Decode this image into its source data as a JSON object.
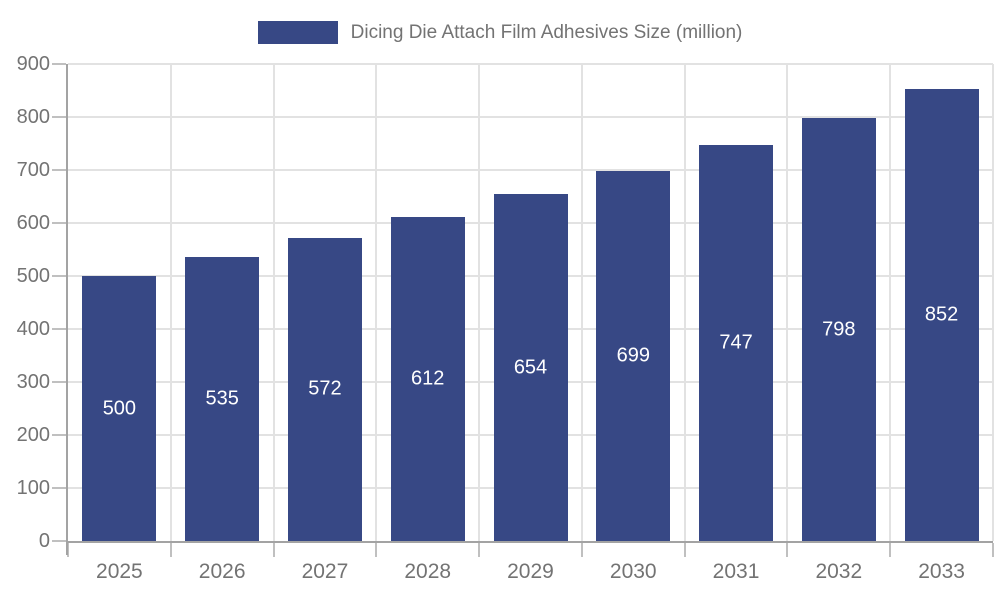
{
  "chart_data": {
    "type": "bar",
    "title": "Dicing Die Attach Film Adhesives Size (million)",
    "categories": [
      "2025",
      "2026",
      "2027",
      "2028",
      "2029",
      "2030",
      "2031",
      "2032",
      "2033"
    ],
    "values": [
      500,
      535,
      572,
      612,
      654,
      699,
      747,
      798,
      852
    ],
    "xlabel": "",
    "ylabel": "",
    "ylim": [
      0,
      900
    ],
    "yticks": [
      0,
      100,
      200,
      300,
      400,
      500,
      600,
      700,
      800,
      900
    ],
    "grid": true,
    "legend_position": "top",
    "value_labels": "inside-center"
  },
  "colors": {
    "bar": "#374885",
    "value_label": "#ffffff",
    "grid": "#e2e2e2",
    "axis": "#a3a3a3",
    "tick": "#c0c0c0",
    "tick_label": "#737373",
    "legend_text": "#737373",
    "background": "#ffffff"
  }
}
